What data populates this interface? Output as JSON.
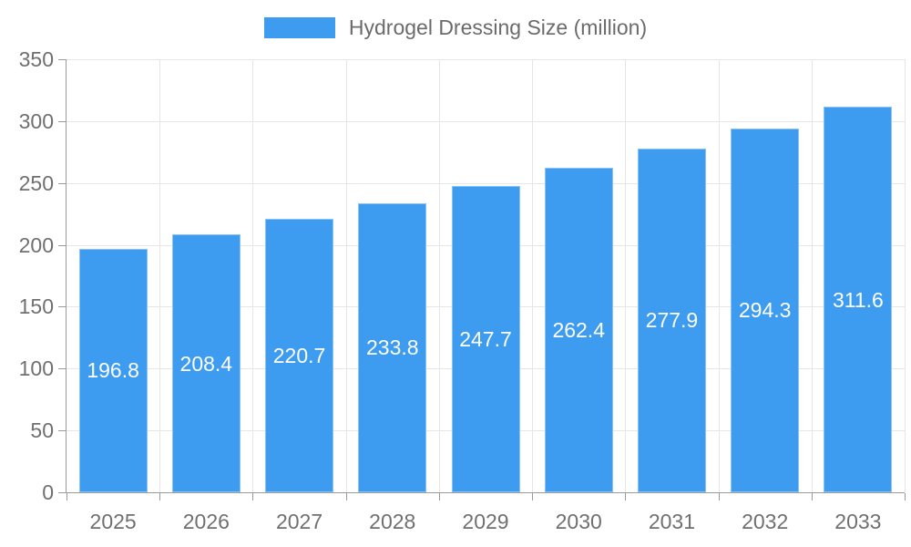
{
  "legend": {
    "label": "Hydrogel Dressing Size (million)",
    "swatch_color": "#3d9bf0"
  },
  "chart_data": {
    "type": "bar",
    "title": "",
    "categories": [
      "2025",
      "2026",
      "2027",
      "2028",
      "2029",
      "2030",
      "2031",
      "2032",
      "2033"
    ],
    "series": [
      {
        "name": "Hydrogel Dressing Size (million)",
        "values": [
          196.8,
          208.4,
          220.7,
          233.8,
          247.7,
          262.4,
          277.9,
          294.3,
          311.6
        ],
        "color": "#3d9bf0"
      }
    ],
    "xlabel": "",
    "ylabel": "",
    "ylim": [
      0,
      350
    ],
    "ytick_interval": 50,
    "ytick_labels": [
      "0",
      "50",
      "100",
      "150",
      "200",
      "250",
      "300",
      "350"
    ],
    "grid": true,
    "legend_position": "top-center",
    "value_label_position": "inside-middle",
    "value_label_color": "#ffffff"
  },
  "colors": {
    "bar": "#3d9bf0",
    "axis_line": "#9a9a9a",
    "grid_line": "#e6e6e6",
    "tick_label": "#707070",
    "legend_text": "#6b6b6b",
    "background": "#ffffff"
  }
}
